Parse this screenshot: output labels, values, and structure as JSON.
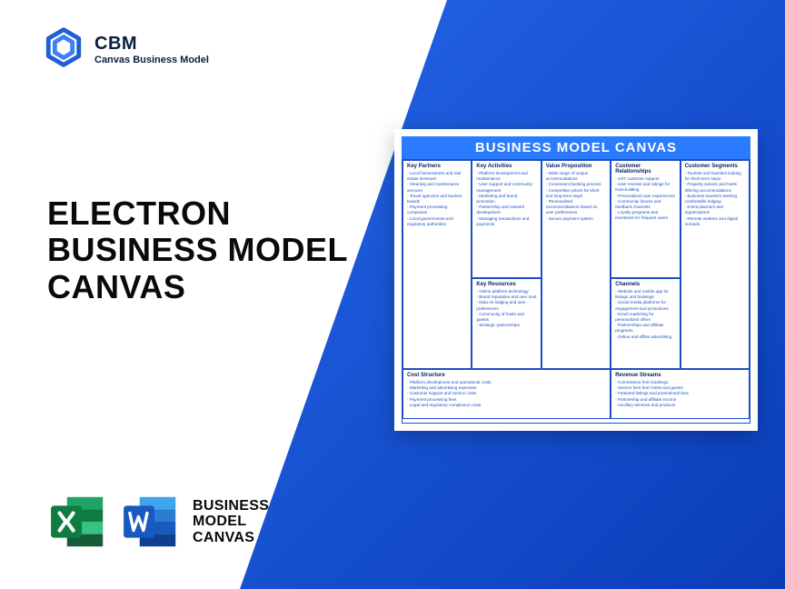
{
  "brand": {
    "acronym": "CBM",
    "name": "Canvas Business Model"
  },
  "title": {
    "line1": "ELECTRON",
    "line2": "BUSINESS MODEL",
    "line3": "CANVAS"
  },
  "apps_label": {
    "l1": "BUSINESS",
    "l2": "MODEL",
    "l3": "CANVAS"
  },
  "canvas": {
    "title": "BUSINESS MODEL CANVAS",
    "key_partners": {
      "heading": "Key Partners",
      "items": [
        "Local homeowners and real estate investors",
        "Cleaning and maintenance services",
        "Travel agencies and tourism boards",
        "Payment processing companies",
        "Local governments and regulatory authorities"
      ]
    },
    "key_activities": {
      "heading": "Key Activities",
      "items": [
        "Platform development and maintenance",
        "User support and community management",
        "Marketing and brand promotion",
        "Partnership and network development",
        "Managing transactions and payments"
      ]
    },
    "key_resources": {
      "heading": "Key Resources",
      "items": [
        "Online platform technology",
        "Brand reputation and user trust",
        "Data on lodging and user preferences",
        "Community of hosts and guests",
        "Strategic partnerships"
      ]
    },
    "value_proposition": {
      "heading": "Value Proposition",
      "items": [
        "Wide range of unique accommodations",
        "Convenient booking process",
        "Competitive prices for short and long-term stays",
        "Personalized recommendations based on user preferences",
        "Secure payment system"
      ]
    },
    "customer_relationships": {
      "heading": "Customer Relationships",
      "items": [
        "24/7 customer support",
        "User reviews and ratings for trust-building",
        "Personalized user experiences",
        "Community forums and feedback channels",
        "Loyalty programs and incentives for frequent users"
      ]
    },
    "channels": {
      "heading": "Channels",
      "items": [
        "Website and mobile app for listings and bookings",
        "Social media platforms for engagement and promotions",
        "Email marketing for personalized offers",
        "Partnerships and affiliate programs",
        "Online and offline advertising"
      ]
    },
    "customer_segments": {
      "heading": "Customer Segments",
      "items": [
        "Tourists and travelers looking for short-term stays",
        "Property owners and hosts offering accommodations",
        "Business travelers seeking comfortable lodging",
        "Event planners and organizations",
        "Remote workers and digital nomads"
      ]
    },
    "cost_structure": {
      "heading": "Cost Structure",
      "items": [
        "Platform development and operational costs",
        "Marketing and advertising expenses",
        "Customer support and service costs",
        "Payment processing fees",
        "Legal and regulatory compliance costs"
      ]
    },
    "revenue_streams": {
      "heading": "Revenue Streams",
      "items": [
        "Commission from bookings",
        "Service fees from hosts and guests",
        "Featured listings and promotional fees",
        "Partnership and affiliate income",
        "Ancillary services and products"
      ]
    }
  },
  "colors": {
    "accent": "#2b7bff",
    "gradient_start": "#2466e8",
    "gradient_end": "#0a3db8",
    "excel_dark": "#107c41",
    "excel_light": "#21a366",
    "word_dark": "#103f91",
    "word_light": "#2b7cd3"
  }
}
